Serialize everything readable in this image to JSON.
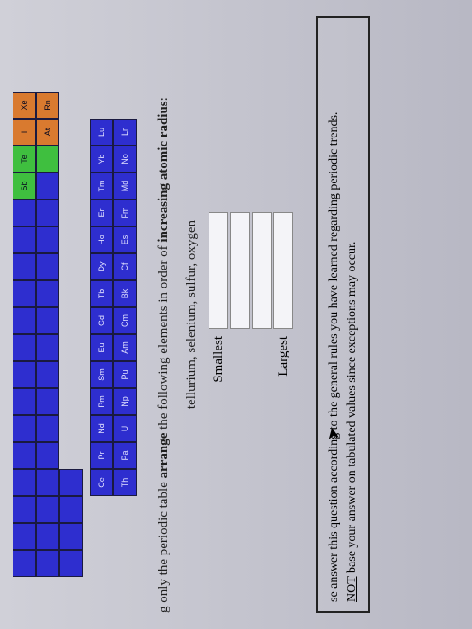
{
  "periodic_table": {
    "main_rows": [
      [
        {
          "sym": "",
          "cls": "blue"
        },
        {
          "sym": "",
          "cls": "blue"
        },
        {
          "sym": "",
          "cls": "blue"
        },
        {
          "sym": "",
          "cls": "blue"
        },
        {
          "sym": "",
          "cls": "blue"
        },
        {
          "sym": "",
          "cls": "blue"
        },
        {
          "sym": "",
          "cls": "blue"
        },
        {
          "sym": "",
          "cls": "blue"
        },
        {
          "sym": "",
          "cls": "blue"
        },
        {
          "sym": "",
          "cls": "blue"
        },
        {
          "sym": "",
          "cls": "blue"
        },
        {
          "sym": "",
          "cls": "blue"
        },
        {
          "sym": "",
          "cls": "blue"
        },
        {
          "sym": "",
          "cls": "blue"
        },
        {
          "sym": "Sb",
          "cls": "green"
        },
        {
          "sym": "Te",
          "cls": "green"
        },
        {
          "sym": "I",
          "cls": "orange"
        },
        {
          "sym": "Xe",
          "cls": "orange"
        }
      ],
      [
        {
          "sym": "",
          "cls": "blue"
        },
        {
          "sym": "",
          "cls": "blue"
        },
        {
          "sym": "",
          "cls": "blue"
        },
        {
          "sym": "",
          "cls": "blue"
        },
        {
          "sym": "",
          "cls": "blue"
        },
        {
          "sym": "",
          "cls": "blue"
        },
        {
          "sym": "",
          "cls": "blue"
        },
        {
          "sym": "",
          "cls": "blue"
        },
        {
          "sym": "",
          "cls": "blue"
        },
        {
          "sym": "",
          "cls": "blue"
        },
        {
          "sym": "",
          "cls": "blue"
        },
        {
          "sym": "",
          "cls": "blue"
        },
        {
          "sym": "",
          "cls": "blue"
        },
        {
          "sym": "",
          "cls": "blue"
        },
        {
          "sym": "",
          "cls": "blue"
        },
        {
          "sym": "",
          "cls": "green"
        },
        {
          "sym": "At",
          "cls": "orange"
        },
        {
          "sym": "Rn",
          "cls": "orange"
        }
      ],
      [
        {
          "sym": "",
          "cls": "blue"
        },
        {
          "sym": "",
          "cls": "blue"
        },
        {
          "sym": "",
          "cls": "blue"
        },
        {
          "sym": "",
          "cls": "blue"
        }
      ]
    ],
    "lanth_rows": [
      [
        {
          "sym": "Ce",
          "cls": "blue"
        },
        {
          "sym": "Pr",
          "cls": "blue"
        },
        {
          "sym": "Nd",
          "cls": "blue"
        },
        {
          "sym": "Pm",
          "cls": "blue"
        },
        {
          "sym": "Sm",
          "cls": "blue"
        },
        {
          "sym": "Eu",
          "cls": "blue"
        },
        {
          "sym": "Gd",
          "cls": "blue"
        },
        {
          "sym": "Tb",
          "cls": "blue"
        },
        {
          "sym": "Dy",
          "cls": "blue"
        },
        {
          "sym": "Ho",
          "cls": "blue"
        },
        {
          "sym": "Er",
          "cls": "blue"
        },
        {
          "sym": "Tm",
          "cls": "blue"
        },
        {
          "sym": "Yb",
          "cls": "blue"
        },
        {
          "sym": "Lu",
          "cls": "blue"
        }
      ],
      [
        {
          "sym": "Th",
          "cls": "blue"
        },
        {
          "sym": "Pa",
          "cls": "blue"
        },
        {
          "sym": "U",
          "cls": "blue"
        },
        {
          "sym": "Np",
          "cls": "blue"
        },
        {
          "sym": "Pu",
          "cls": "blue"
        },
        {
          "sym": "Am",
          "cls": "blue"
        },
        {
          "sym": "Cm",
          "cls": "blue"
        },
        {
          "sym": "Bk",
          "cls": "blue"
        },
        {
          "sym": "Cf",
          "cls": "blue"
        },
        {
          "sym": "Es",
          "cls": "blue"
        },
        {
          "sym": "Fm",
          "cls": "blue"
        },
        {
          "sym": "Md",
          "cls": "blue"
        },
        {
          "sym": "No",
          "cls": "blue"
        },
        {
          "sym": "Lr",
          "cls": "blue"
        }
      ]
    ]
  },
  "question": {
    "lead": "g only the periodic table ",
    "bold1": "arrange",
    "mid": " the following elements in order of ",
    "bold2": "increasing atomic radius",
    "tail": ":"
  },
  "elements_line": "tellurium, selenium, sulfur, oxygen",
  "labels": {
    "smallest": "Smallest",
    "largest": "Largest"
  },
  "note": {
    "line1_lead": "se answer this question according to the general rules you have learned regarding periodic trends.",
    "line2_pre": "",
    "line2_bold": "NOT",
    "line2_post": " base your answer on tabulated values since exceptions may occur."
  },
  "colors": {
    "blue": "#2e2ecf",
    "green": "#3fbf3f",
    "orange": "#d97a2f",
    "page_bg": "#c8c8d0",
    "border": "#222222"
  }
}
